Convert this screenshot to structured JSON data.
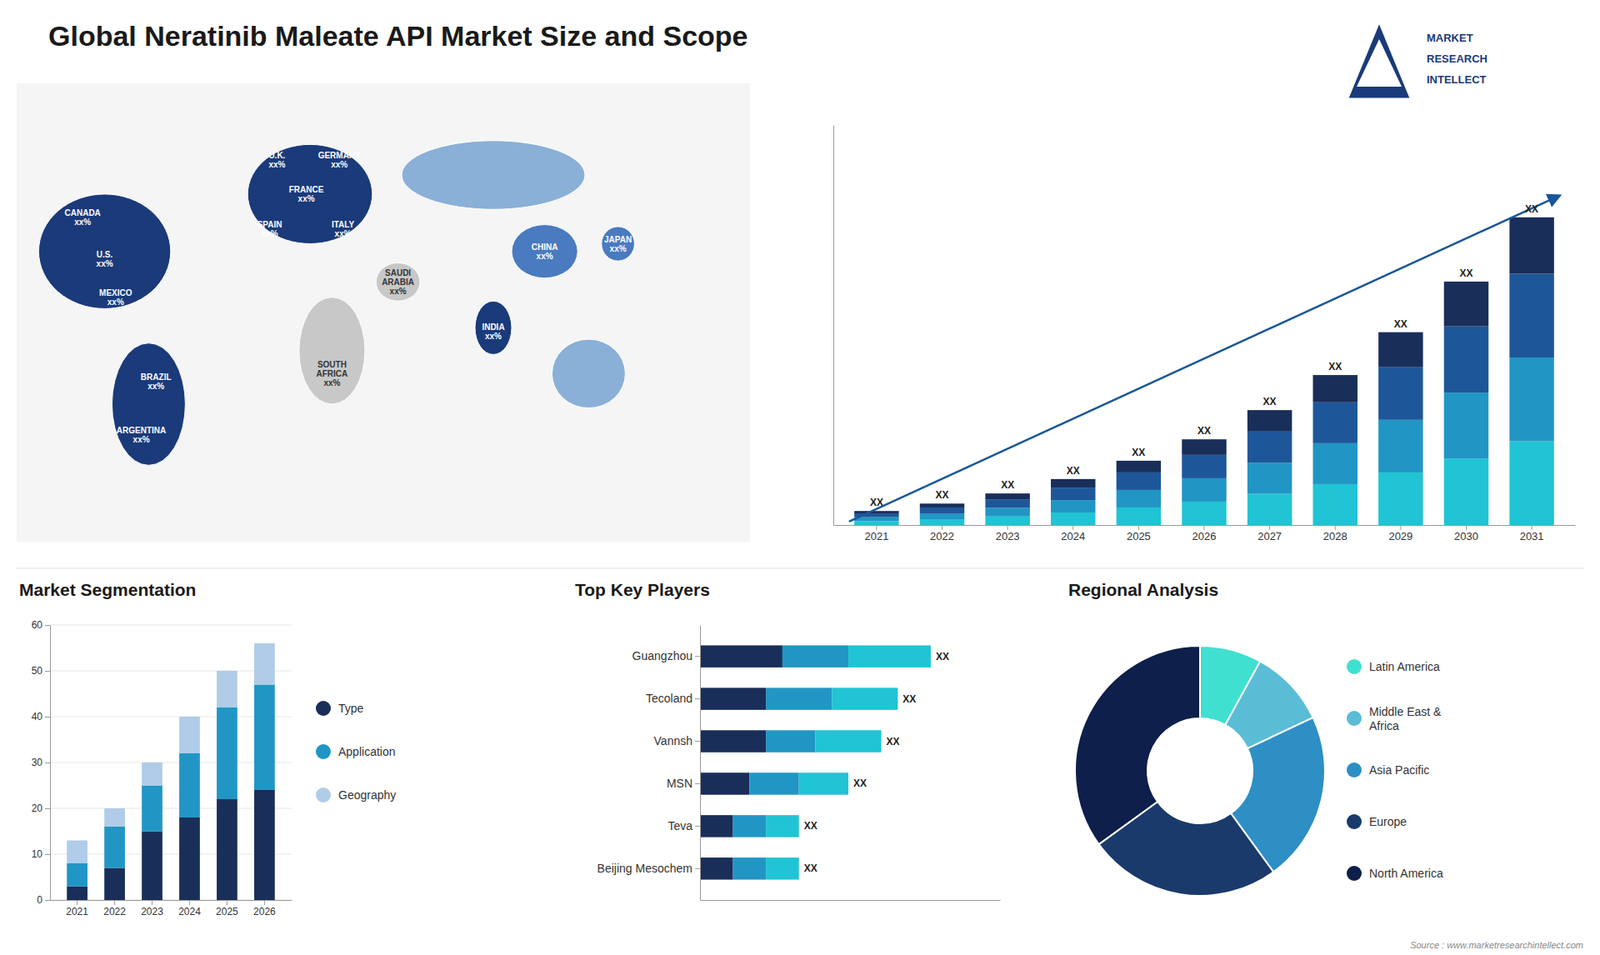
{
  "chart_data": [
    {
      "type": "bar",
      "title": "Global Neratinib Maleate API Market Size and Scope",
      "stacked": true,
      "categories": [
        "2021",
        "2022",
        "2023",
        "2024",
        "2025",
        "2026",
        "2027",
        "2028",
        "2029",
        "2030",
        "2031"
      ],
      "series": [
        {
          "color": "#20c4d4",
          "values": [
            1.0,
            1.5,
            2.2,
            3.2,
            4.5,
            6.0,
            8.0,
            10.5,
            13.5,
            17.0,
            21.5
          ]
        },
        {
          "color": "#2196c4",
          "values": [
            1.0,
            1.5,
            2.2,
            3.2,
            4.5,
            6.0,
            8.0,
            10.5,
            13.5,
            17.0,
            21.5
          ]
        },
        {
          "color": "#1e5799",
          "values": [
            1.0,
            1.5,
            2.2,
            3.2,
            4.5,
            6.0,
            8.0,
            10.5,
            13.5,
            17.0,
            21.5
          ]
        },
        {
          "color": "#1a2e5a",
          "values": [
            0.6,
            1.0,
            1.5,
            2.2,
            3.0,
            4.0,
            5.5,
            7.0,
            9.0,
            11.5,
            14.5
          ]
        }
      ],
      "ylim": [
        0,
        102.7
      ],
      "tick_labels": "x",
      "annotations": [
        "XX",
        "XX",
        "XX",
        "XX",
        "XX",
        "XX",
        "XX",
        "XX",
        "XX",
        "XX",
        "XX"
      ]
    },
    {
      "type": "map",
      "annotations": [
        "CANADA\nxx%",
        "U.S.\nxx%",
        "MEXICO\nxx%",
        "BRAZIL\nxx%",
        "ARGENTINA\nxx%",
        "U.K.\nxx%",
        "FRANCE\nxx%",
        "SPAIN\nxx%",
        "GERMANY\nxx%",
        "ITALY\nxx%",
        "SAUDI\nARABIA\nxx%",
        "SOUTH\nAFRICA\nxx%",
        "CHINA\nxx%",
        "INDIA\nxx%",
        "JAPAN\nxx%"
      ]
    },
    {
      "type": "bar",
      "title": "Market Segmentation",
      "stacked": true,
      "categories": [
        "2021",
        "2022",
        "2023",
        "2024",
        "2025",
        "2026"
      ],
      "series": [
        {
          "name": "Type",
          "color": "#1a2e5a",
          "values": [
            3,
            7,
            15,
            18,
            22,
            24
          ]
        },
        {
          "name": "Application",
          "color": "#2196c4",
          "values": [
            5,
            9,
            10,
            14,
            20,
            23
          ]
        },
        {
          "name": "Geography",
          "color": "#b0cce8",
          "values": [
            5,
            4,
            5,
            8,
            8,
            9
          ]
        }
      ],
      "ylim": [
        0,
        60
      ],
      "yticks": [
        0,
        10,
        20,
        30,
        40,
        50,
        60
      ],
      "grid": true,
      "legend": "right"
    },
    {
      "type": "bar",
      "title": "Top Key Players",
      "orientation": "horizontal",
      "stacked": true,
      "categories": [
        "Guangzhou",
        "Tecoland",
        "Vannsh",
        "MSN",
        "Teva",
        "Beijing Mesochem"
      ],
      "series": [
        {
          "color": "#1a2e5a",
          "values": [
            5,
            4,
            4,
            3,
            2,
            2
          ]
        },
        {
          "color": "#2196c4",
          "values": [
            4,
            4,
            3,
            3,
            2,
            2
          ]
        },
        {
          "color": "#20c4d4",
          "values": [
            5,
            4,
            4,
            3,
            2,
            2
          ]
        }
      ],
      "xlim": [
        0,
        18.2
      ],
      "tick_labels": "y",
      "annotations": [
        "XX",
        "XX",
        "XX",
        "XX",
        "XX",
        "XX"
      ]
    },
    {
      "type": "pie",
      "title": "Regional Analysis",
      "categories": [
        "Latin America",
        "Middle East &\nAfrica",
        "Asia Pacific",
        "Europe",
        "North America"
      ],
      "values": [
        8,
        10,
        22,
        25,
        35
      ],
      "colors": [
        "#40e0d0",
        "#5bbcd6",
        "#2d8fc4",
        "#1a3a6b",
        "#0d1f4a"
      ],
      "legend": "right",
      "annotations": [
        "MARKET",
        "RESEARCH",
        "INTELLECT",
        "Source : www.marketresearchintellect.com"
      ]
    }
  ]
}
